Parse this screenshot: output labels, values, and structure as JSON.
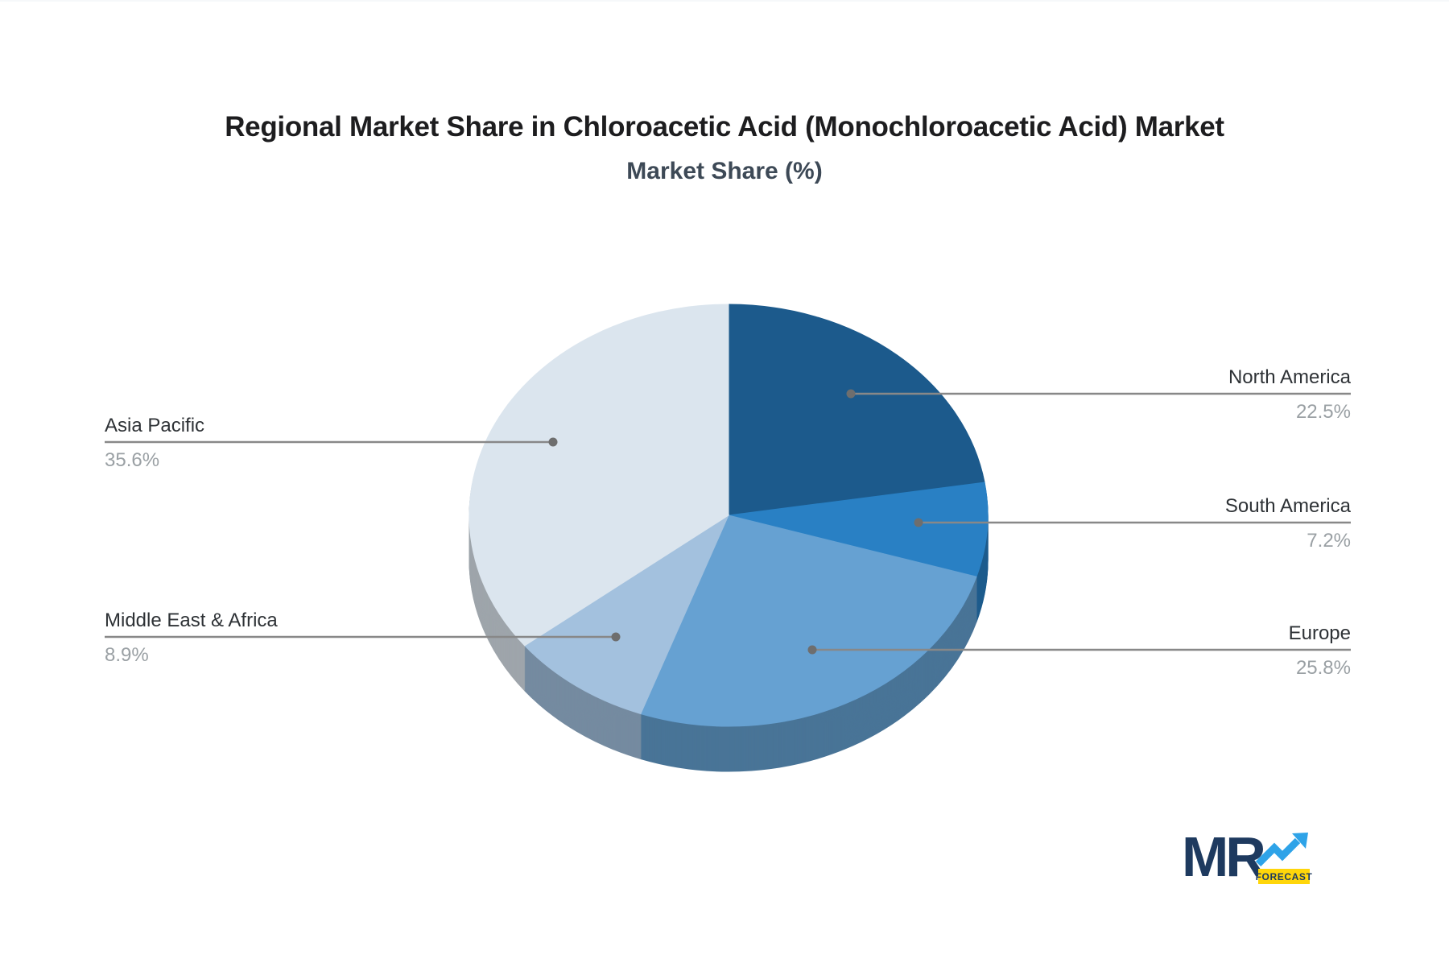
{
  "header": {
    "title": "Regional Market Share in Chloroacetic Acid (Monochloroacetic Acid) Market",
    "subtitle": "Market Share (%)"
  },
  "chart_data": {
    "type": "pie",
    "style": "3d",
    "title": "Regional Market Share in Chloroacetic Acid (Monochloroacetic Acid) Market",
    "subtitle": "Market Share (%)",
    "unit": "%",
    "start_angle_deg_clockwise_from_top": 0,
    "direction": "clockwise",
    "legend_position": "callout-labels",
    "segments": [
      {
        "label": "North America",
        "value": 22.5,
        "display": "22.5%",
        "color": "#1c5a8c"
      },
      {
        "label": "South America",
        "value": 7.2,
        "display": "7.2%",
        "color": "#2980c4"
      },
      {
        "label": "Europe",
        "value": 25.8,
        "display": "25.8%",
        "color": "#66a1d2"
      },
      {
        "label": "Middle East & Africa",
        "value": 8.9,
        "display": "8.9%",
        "color": "#a3c1de"
      },
      {
        "label": "Asia Pacific",
        "value": 35.6,
        "display": "35.6%",
        "color": "#dbe5ee"
      }
    ]
  },
  "logo": {
    "text": "MR",
    "badge": "FORECAST",
    "navy": "#1e3a5f",
    "arrow_blue": "#2ea3e8",
    "badge_yellow": "#ffd60a"
  },
  "colors": {
    "title": "#1d1d1f",
    "subtitle": "#3d4956",
    "callout_name": "#2e3236",
    "callout_value": "#9aa0a4",
    "leader_line": "#888888",
    "leader_dot": "#6e6e6e",
    "background": "#ffffff"
  }
}
